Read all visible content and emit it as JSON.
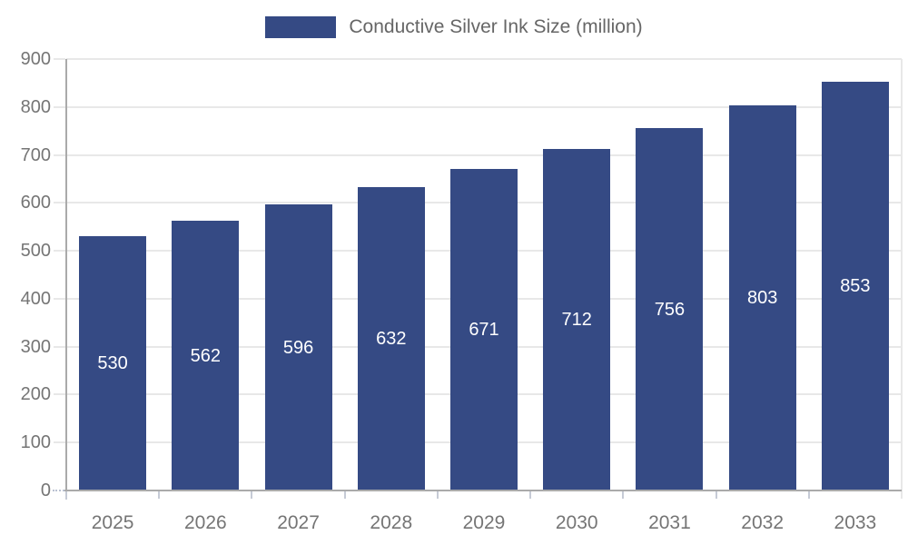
{
  "chart_data": {
    "type": "bar",
    "title": "Conductive Silver Ink Size (million)",
    "legend": [
      "Conductive Silver Ink Size (million)"
    ],
    "legend_position": "top-center",
    "categories": [
      "2025",
      "2026",
      "2027",
      "2028",
      "2029",
      "2030",
      "2031",
      "2032",
      "2033"
    ],
    "values": [
      530,
      562,
      596,
      632,
      671,
      712,
      756,
      803,
      853
    ],
    "xlabel": "",
    "ylabel": "",
    "ylim": [
      0,
      900
    ],
    "yticks": [
      0,
      100,
      200,
      300,
      400,
      500,
      600,
      700,
      800,
      900
    ],
    "grid": true,
    "bar_labels_inside": true,
    "colors": {
      "bar": "#354a84",
      "bar_label": "#ffffff",
      "axis_text": "#757575",
      "legend_text": "#666666",
      "grid_line": "#e8e8e8",
      "axis_line": "#aaaaaa",
      "minor_tick": "#c6cbd6",
      "background": "#ffffff"
    }
  }
}
